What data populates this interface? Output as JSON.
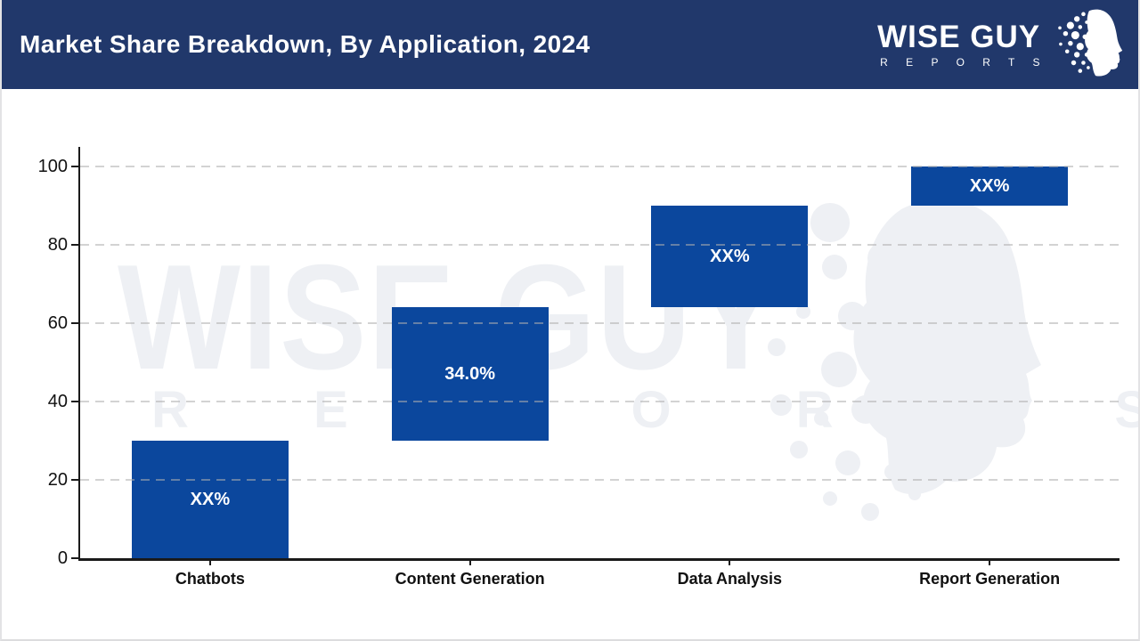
{
  "header": {
    "title": "Market Share Breakdown, By Application, 2024",
    "logo_line1": "WISE GUY",
    "logo_line2": "R E P O R T S",
    "bg_color": "#21386b"
  },
  "watermark": {
    "line1": "WISE GUY",
    "line2": "R E P O R T S"
  },
  "chart_data": {
    "type": "bar",
    "subtype": "waterfall",
    "title": "Market Share Breakdown, By Application, 2024",
    "categories": [
      "Chatbots",
      "Content Generation",
      "Data Analysis",
      "Report Generation"
    ],
    "segments": [
      {
        "category": "Chatbots",
        "start": 0,
        "end": 30,
        "label": "XX%"
      },
      {
        "category": "Content Generation",
        "start": 30,
        "end": 64,
        "label": "34.0%"
      },
      {
        "category": "Data Analysis",
        "start": 64,
        "end": 90,
        "label": "XX%"
      },
      {
        "category": "Report Generation",
        "start": 90,
        "end": 100,
        "label": "XX%"
      }
    ],
    "yticks": [
      0,
      20,
      40,
      60,
      80,
      100
    ],
    "ylim": [
      0,
      105
    ],
    "xlabel": "",
    "ylabel": "",
    "bar_color": "#0b479d",
    "bar_label_color": "#ffffff",
    "gridline_style": "dashed",
    "axis_color": "#1a1a1a",
    "legend": "none"
  }
}
